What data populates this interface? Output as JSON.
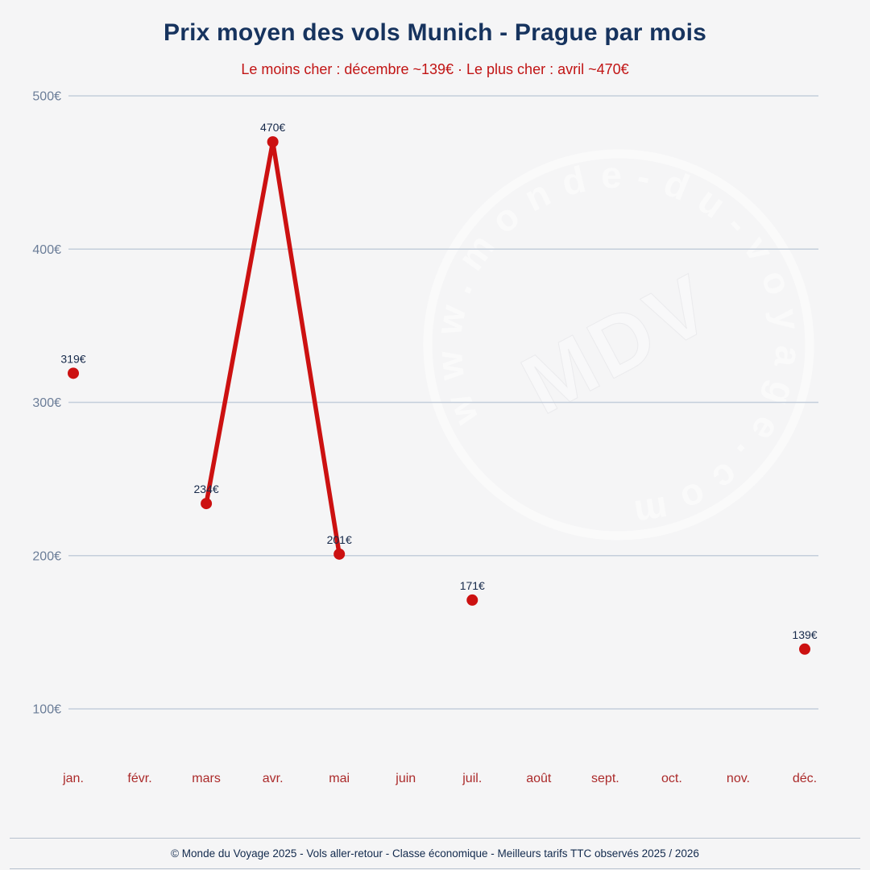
{
  "title": "Prix moyen des vols Munich - Prague par mois",
  "subtitle": "Le moins cher : décembre ~139€ · Le plus cher : avril ~470€",
  "footer": "© Monde du Voyage 2025 - Vols aller-retour - Classe économique - Meilleurs tarifs TTC observés 2025 / 2026",
  "watermark": {
    "circle_text": "www.monde-du-voyage.com",
    "center_text": "MDV"
  },
  "chart_data": {
    "type": "line",
    "title": "Prix moyen des vols Munich - Prague par mois",
    "subtitle": "Le moins cher : décembre ~139€ · Le plus cher : avril ~470€",
    "categories": [
      "jan.",
      "févr.",
      "mars",
      "avr.",
      "mai",
      "juin",
      "juil.",
      "août",
      "sept.",
      "oct.",
      "nov.",
      "déc."
    ],
    "values": [
      319,
      null,
      234,
      470,
      201,
      null,
      171,
      null,
      null,
      null,
      null,
      139
    ],
    "point_labels": [
      "319€",
      null,
      "234€",
      "470€",
      "201€",
      null,
      "171€",
      null,
      null,
      null,
      null,
      "139€"
    ],
    "yticks": [
      {
        "value": 100,
        "label": "100€"
      },
      {
        "value": 200,
        "label": "200€"
      },
      {
        "value": 300,
        "label": "300€"
      },
      {
        "value": 400,
        "label": "400€"
      },
      {
        "value": 500,
        "label": "500€"
      }
    ],
    "ylim": [
      100,
      500
    ],
    "grid": true,
    "legend": "none",
    "line_color": "#cc1111",
    "point_color": "#cc1111",
    "currency": "€"
  }
}
